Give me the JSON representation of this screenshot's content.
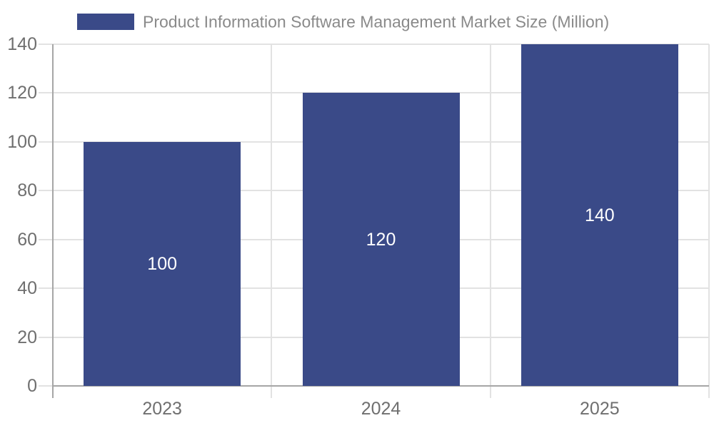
{
  "chart_data": {
    "type": "bar",
    "title": "Product Information Software Management Market Size (Million)",
    "categories": [
      "2023",
      "2024",
      "2025"
    ],
    "values": [
      100,
      120,
      140
    ],
    "bar_labels": [
      "100",
      "120",
      "140"
    ],
    "ytick_labels": [
      "0",
      "20",
      "40",
      "60",
      "80",
      "100",
      "120",
      "140"
    ],
    "ylim": [
      0,
      140
    ],
    "ytick_step": 20,
    "xlabel": "",
    "ylabel": "",
    "grid": true,
    "legend_position": "top-left",
    "colors": {
      "bar_fill": "#3a4a88",
      "gridline": "#e2e2e2",
      "axis_line": "#a6a6a6",
      "tick_label": "#6f6f6f",
      "title_text": "#8a8a8a",
      "bar_label_text": "#ffffff",
      "background": "#ffffff"
    }
  }
}
